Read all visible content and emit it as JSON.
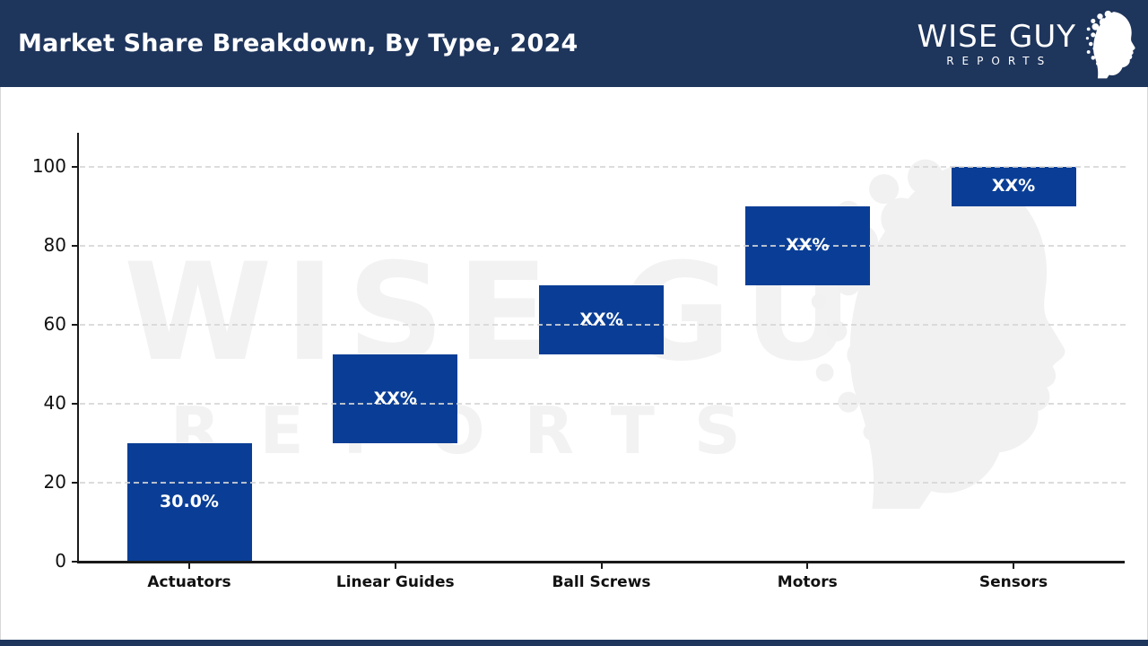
{
  "header": {
    "title": "Market Share Breakdown, By Type, 2024",
    "logo": {
      "main": "WISE GUY",
      "sub": "REPORTS"
    }
  },
  "watermark": {
    "line1": "WISE GUY",
    "line2": "REPORTS"
  },
  "colors": {
    "header_navy": "#1e355c",
    "footer_navy": "#1e355c",
    "bar_blue": "#0a3e96",
    "bar_label": "#ffffff",
    "watermark_gray": "#f2f2f2",
    "grid_gray": "#d6d6d6",
    "axis_black": "#1a1a1a",
    "title_white": "#ffffff"
  },
  "chart_data": {
    "type": "waterfall",
    "title": "Market Share Breakdown, By Type, 2024",
    "categories": [
      "Actuators",
      "Linear Guides",
      "Ball Screws",
      "Motors",
      "Sensors"
    ],
    "segments": [
      {
        "category": "Actuators",
        "start": 0,
        "end": 30,
        "label": "30.0%"
      },
      {
        "category": "Linear Guides",
        "start": 30,
        "end": 52.5,
        "label": "XX%"
      },
      {
        "category": "Ball Screws",
        "start": 52.5,
        "end": 70,
        "label": "XX%"
      },
      {
        "category": "Motors",
        "start": 70,
        "end": 90,
        "label": "XX%"
      },
      {
        "category": "Sensors",
        "start": 90,
        "end": 100,
        "label": "XX%"
      }
    ],
    "y_ticks": [
      0,
      20,
      40,
      60,
      80,
      100
    ],
    "ylim": [
      0,
      105
    ],
    "xlabel": "",
    "ylabel": "",
    "grid": "horizontal-dashed",
    "legend": null,
    "bar_value_note": "values beyond first bar are masked as XX% in source image"
  }
}
